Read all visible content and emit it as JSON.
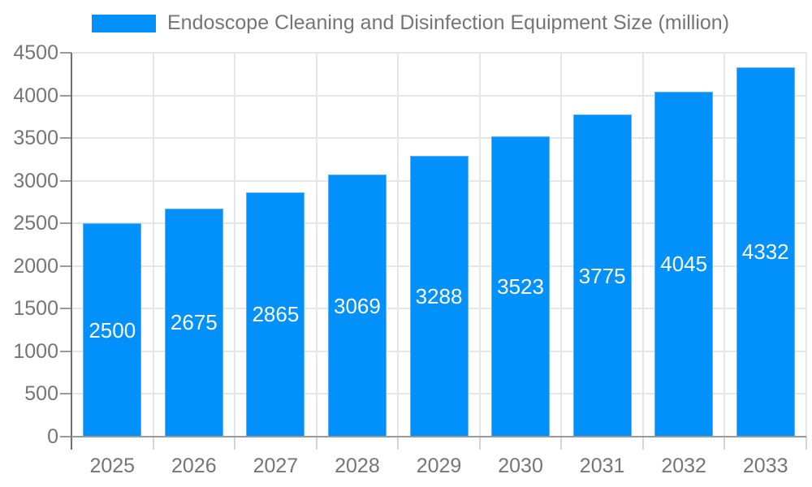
{
  "chart_data": {
    "type": "bar",
    "title": "Endoscope Cleaning and Disinfection Equipment Size (million)",
    "categories": [
      "2025",
      "2026",
      "2027",
      "2028",
      "2029",
      "2030",
      "2031",
      "2032",
      "2033"
    ],
    "values": [
      2500,
      2675,
      2865,
      3069,
      3288,
      3523,
      3775,
      4045,
      4332
    ],
    "xlabel": "",
    "ylabel": "",
    "ylim": [
      0,
      4500
    ],
    "ytick_step": 500,
    "yticks": [
      0,
      500,
      1000,
      1500,
      2000,
      2500,
      3000,
      3500,
      4000,
      4500
    ],
    "grid": "horizontal gridlines at every y tick and vertical gridlines at category boundaries",
    "legend_position": "top-left",
    "value_labels": "shown centered inside each bar in white",
    "colors": {
      "bar": "#0290FA",
      "bar_edge": "#5FB2FA",
      "grid": "#E6E6E6",
      "y_axis_line": "#6E6E6E",
      "x_axis_line": "#9A9A9A",
      "y_tick": "#9A9A9A",
      "x_tick": "#D5D5D5",
      "tick_label": "#757575",
      "legend_text": "#757575",
      "value_label": "#FFFFFF",
      "background": "#FFFFFF"
    }
  }
}
